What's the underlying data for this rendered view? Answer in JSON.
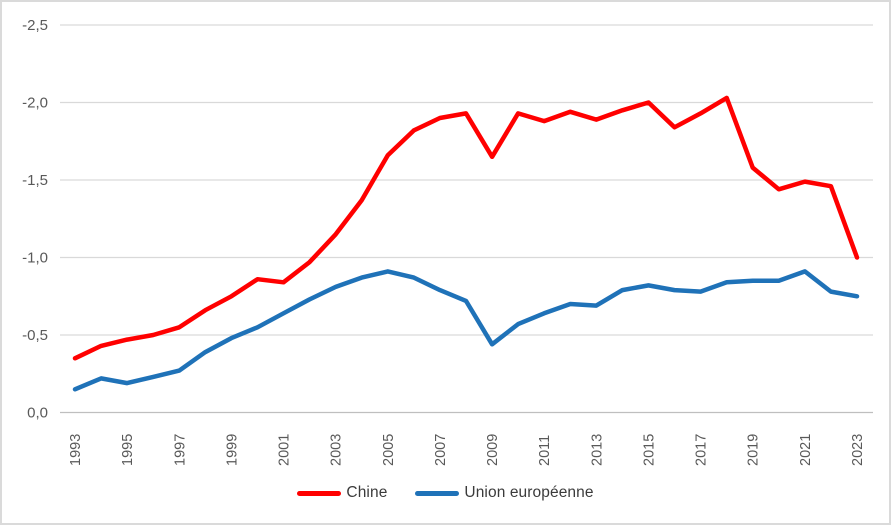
{
  "chart_data": {
    "type": "line",
    "title": "",
    "x": [
      1993,
      1994,
      1995,
      1996,
      1997,
      1998,
      1999,
      2000,
      2001,
      2002,
      2003,
      2004,
      2005,
      2006,
      2007,
      2008,
      2009,
      2010,
      2011,
      2012,
      2013,
      2014,
      2015,
      2016,
      2017,
      2018,
      2019,
      2020,
      2021,
      2022,
      2023
    ],
    "x_tick_labels": [
      "1993",
      "1995",
      "1997",
      "1999",
      "2001",
      "2003",
      "2005",
      "2007",
      "2009",
      "2011",
      "2013",
      "2015",
      "2017",
      "2019",
      "2021",
      "2023"
    ],
    "series": [
      {
        "name": "Chine",
        "color": "#FF0000",
        "values": [
          -0.35,
          -0.43,
          -0.47,
          -0.5,
          -0.55,
          -0.66,
          -0.75,
          -0.86,
          -0.84,
          -0.97,
          -1.15,
          -1.37,
          -1.66,
          -1.82,
          -1.9,
          -1.93,
          -1.65,
          -1.93,
          -1.88,
          -1.94,
          -1.89,
          -1.95,
          -2.0,
          -1.84,
          -1.93,
          -2.03,
          -1.58,
          -1.44,
          -1.49,
          -1.46,
          -1.0
        ]
      },
      {
        "name": "Union européenne",
        "color": "#1F72B8",
        "values": [
          -0.15,
          -0.22,
          -0.19,
          -0.23,
          -0.27,
          -0.39,
          -0.48,
          -0.55,
          -0.64,
          -0.73,
          -0.81,
          -0.87,
          -0.91,
          -0.87,
          -0.79,
          -0.72,
          -0.44,
          -0.57,
          -0.64,
          -0.7,
          -0.69,
          -0.79,
          -0.82,
          -0.79,
          -0.78,
          -0.84,
          -0.85,
          -0.85,
          -0.91,
          -0.78,
          -0.75
        ]
      }
    ],
    "y_axis": {
      "ticks": [
        0,
        -0.5,
        -1.0,
        -1.5,
        -2.0,
        -2.5
      ],
      "tick_labels": [
        "0,0",
        "-0,5",
        "-1,0",
        "-1,5",
        "-2,0",
        "-2,5"
      ],
      "range": [
        0,
        -2.5
      ],
      "inverted": true
    },
    "grid": "horizontal",
    "legend_position": "bottom"
  },
  "colors": {
    "gridline": "#D9D9D9",
    "axis_line": "#BFBFBF",
    "tick_text": "#595959",
    "legend_text": "#3B3B3B",
    "background": "#FFFFFF",
    "frame_border": "#DADADA"
  }
}
